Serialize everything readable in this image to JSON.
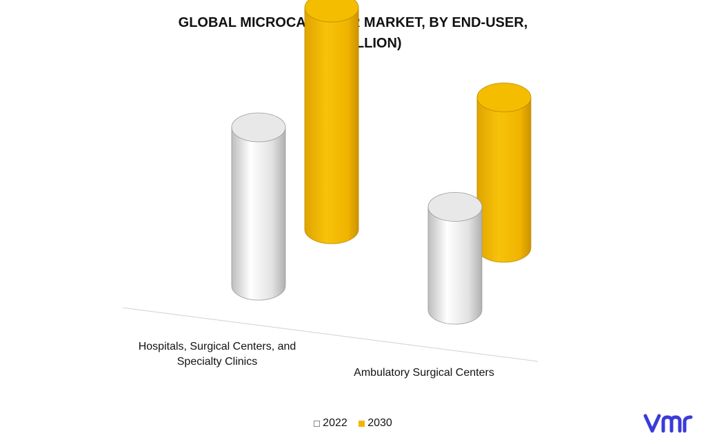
{
  "chart_data": {
    "type": "bar",
    "title_line1": "GLOBAL MICROCATHETER MARKET, BY END-USER,",
    "title_line2": "(USD BILLION)",
    "categories": [
      "Hospitals, Surgical Centers, and Specialty Clinics",
      "Ambulatory Surgical Centers"
    ],
    "series": [
      {
        "name": "2022",
        "values": [
          2.0,
          1.3
        ],
        "color": "#e6e6e6"
      },
      {
        "name": "2030",
        "values": [
          2.8,
          1.9
        ],
        "color": "#f2b600"
      }
    ],
    "ylim": [
      0,
      3.5
    ],
    "grid": false,
    "legend_position": "bottom"
  },
  "labels": {
    "cat1_line1": "Hospitals, Surgical Centers, and",
    "cat1_line2": "Specialty Clinics",
    "cat2": "Ambulatory Surgical Centers"
  },
  "logo": {
    "text": "vmr",
    "color": "#3b3bd9"
  }
}
